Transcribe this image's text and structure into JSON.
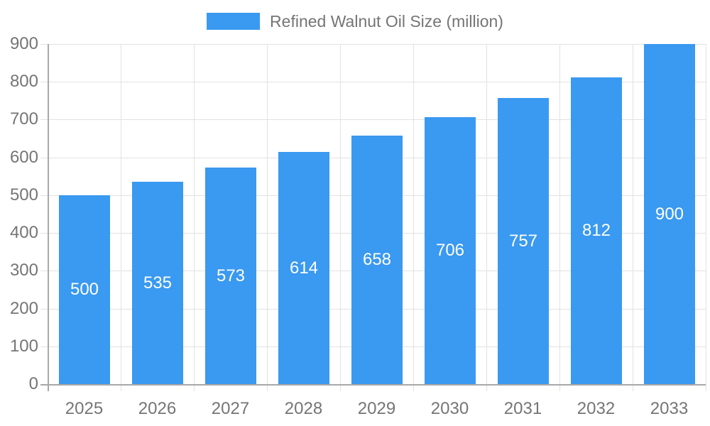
{
  "chart_data": {
    "type": "bar",
    "title": "Refined Walnut Oil Size (million)",
    "categories": [
      "2025",
      "2026",
      "2027",
      "2028",
      "2029",
      "2030",
      "2031",
      "2032",
      "2033"
    ],
    "values": [
      500,
      535,
      573,
      614,
      658,
      706,
      757,
      812,
      900
    ],
    "yticks": [
      0,
      100,
      200,
      300,
      400,
      500,
      600,
      700,
      800,
      900
    ],
    "ylim": [
      0,
      900
    ],
    "xlabel": "",
    "ylabel": "",
    "grid": true,
    "legend_position": "top-center",
    "value_labels": "inside-middle",
    "colors": {
      "bar": "#3a99f0",
      "value_label": "#ffffff",
      "axis_text": "#757575",
      "gridline": "#e2e2e2",
      "axis_line": "#a8a8a8",
      "background": "#ffffff"
    }
  }
}
